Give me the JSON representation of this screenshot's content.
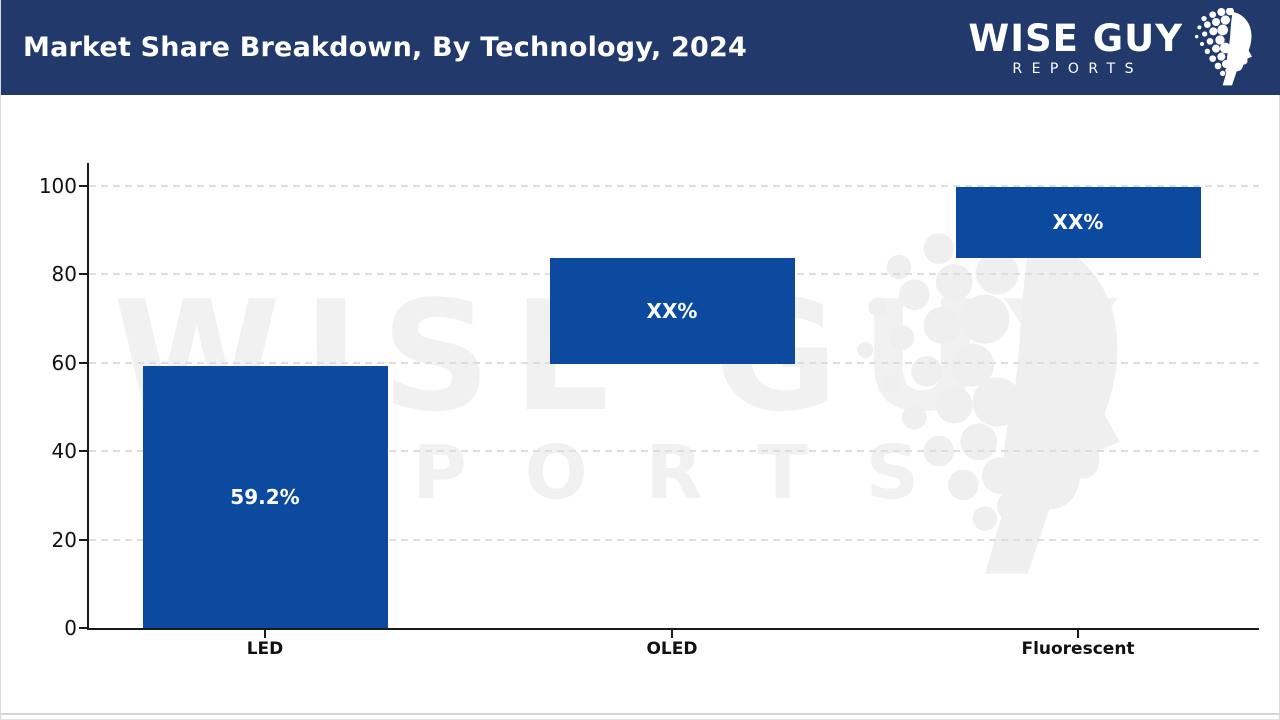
{
  "header": {
    "title": "Market Share Breakdown, By Technology, 2024",
    "logo": {
      "line1": "WISE GUY",
      "line2": "REPORTS"
    }
  },
  "watermark": {
    "line1": "WISE GUY",
    "line2": "REPORTS"
  },
  "chart_data": {
    "type": "bar",
    "subtype": "stacked-waterfall-breakdown",
    "title": "Market Share Breakdown, By Technology, 2024",
    "categories": [
      "LED",
      "OLED",
      "Fluorescent"
    ],
    "segments": [
      {
        "category": "LED",
        "start": 0,
        "end": 59.2,
        "label": "59.2%"
      },
      {
        "category": "OLED",
        "start": 59.8,
        "end": 83.6,
        "label": "XX%"
      },
      {
        "category": "Fluorescent",
        "start": 83.8,
        "end": 99.8,
        "label": "XX%"
      }
    ],
    "xlabel": "",
    "ylabel": "",
    "ylim": [
      0,
      100
    ],
    "yticks": [
      0,
      20,
      40,
      60,
      80,
      100
    ],
    "grid": "dashed-horizontal",
    "legend": "none",
    "bar_color": "#0b4a9e",
    "bar_label_color": "#ffffff",
    "axis_color": "#1a1a1a",
    "grid_color": "#dedede"
  },
  "colors": {
    "header_bg": "#213a6b",
    "watermark": "#f1f1f1",
    "bar": "#0b4a9e"
  }
}
